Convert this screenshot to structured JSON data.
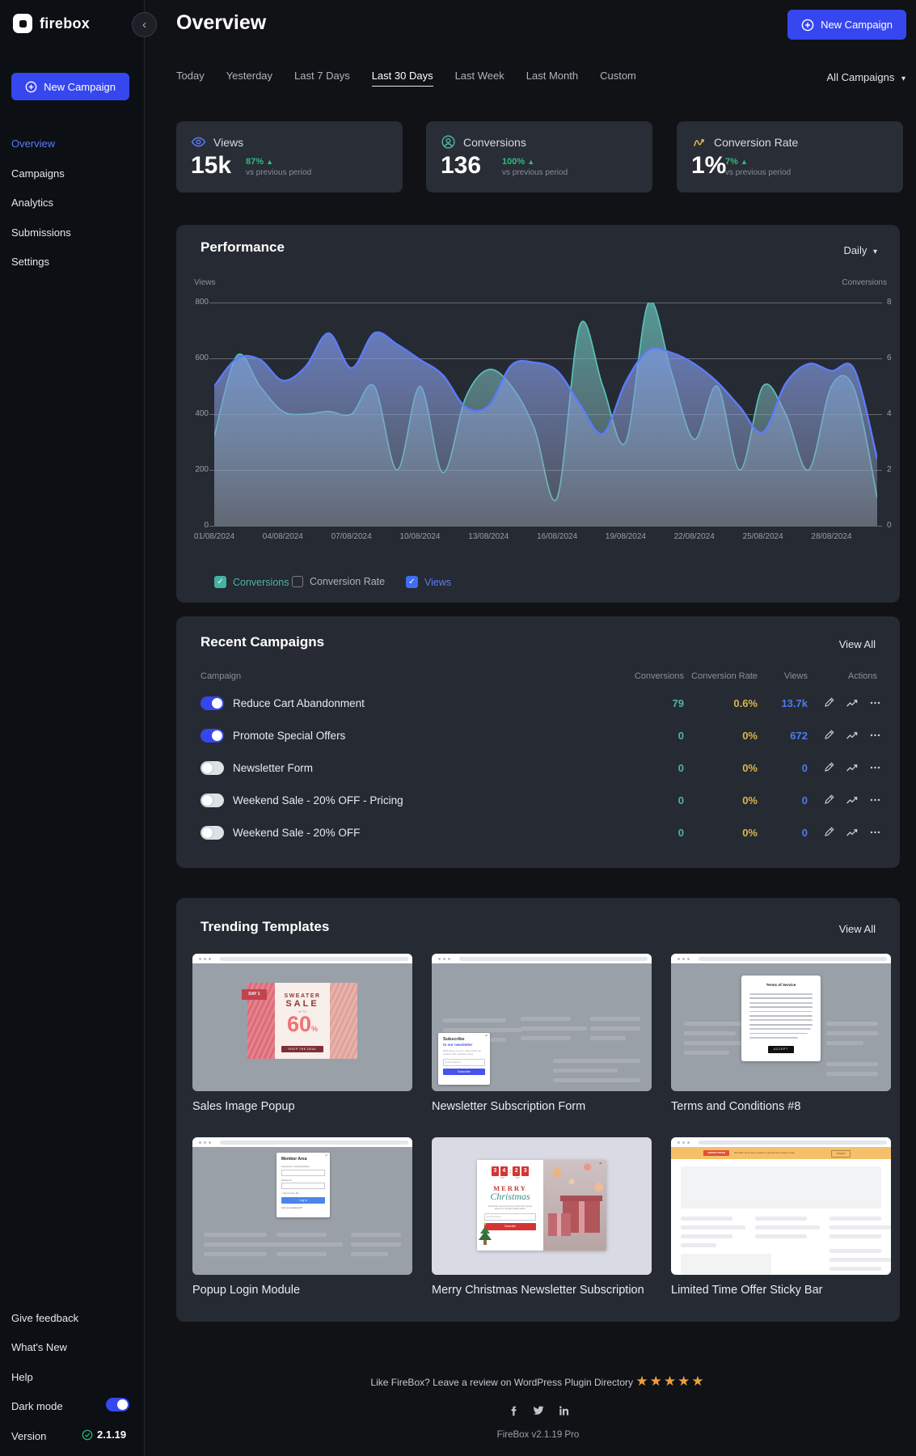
{
  "sidebar": {
    "brand": "firebox",
    "new_campaign_label": "New Campaign",
    "nav": [
      {
        "label": "Overview",
        "active": true
      },
      {
        "label": "Campaigns",
        "active": false
      },
      {
        "label": "Analytics",
        "active": false
      },
      {
        "label": "Submissions",
        "active": false
      },
      {
        "label": "Settings",
        "active": false
      }
    ],
    "footer_links": [
      "Give feedback",
      "What's New",
      "Help"
    ],
    "dark_mode_label": "Dark mode",
    "dark_mode_on": true,
    "version_label": "Version",
    "version_value": "2.1.19"
  },
  "header": {
    "title": "Overview",
    "new_campaign_label": "New Campaign",
    "campaign_filter": "All Campaigns"
  },
  "date_filters": {
    "items": [
      "Today",
      "Yesterday",
      "Last 7 Days",
      "Last 30 Days",
      "Last Week",
      "Last Month",
      "Custom"
    ],
    "active": "Last 30 Days"
  },
  "stats": [
    {
      "label": "Views",
      "value": "15k",
      "delta": "87%",
      "up": "▲",
      "note": "vs previous period",
      "accent": "#5b7cfa"
    },
    {
      "label": "Conversions",
      "value": "136",
      "delta": "100%",
      "up": "▲",
      "note": "vs previous period",
      "accent": "#4fb3a9"
    },
    {
      "label": "Conversion Rate",
      "value": "1%",
      "delta": "7%",
      "up": "▲",
      "note": "vs previous period",
      "accent": "#e3bb4e"
    }
  ],
  "performance": {
    "title": "Performance",
    "range_label": "Daily",
    "legend": [
      {
        "label": "Conversions",
        "checked": true,
        "color": "#4fb3a9"
      },
      {
        "label": "Conversion Rate",
        "checked": false,
        "color": "#aeb4bc"
      },
      {
        "label": "Views",
        "checked": true,
        "color": "#5b7cfa"
      }
    ]
  },
  "chart_data": {
    "type": "area",
    "title": "Performance",
    "x": [
      "01/08/2024",
      "02/08/2024",
      "03/08/2024",
      "04/08/2024",
      "05/08/2024",
      "06/08/2024",
      "07/08/2024",
      "08/08/2024",
      "09/08/2024",
      "10/08/2024",
      "11/08/2024",
      "12/08/2024",
      "13/08/2024",
      "14/08/2024",
      "15/08/2024",
      "16/08/2024",
      "17/08/2024",
      "18/08/2024",
      "19/08/2024",
      "20/08/2024",
      "21/08/2024",
      "22/08/2024",
      "23/08/2024",
      "24/08/2024",
      "25/08/2024",
      "26/08/2024",
      "27/08/2024",
      "28/08/2024",
      "29/08/2024",
      "30/08/2024"
    ],
    "x_tick_every": 3,
    "left_axis": {
      "label": "Views",
      "min": 0,
      "max": 800,
      "ticks": [
        800,
        600,
        400,
        200,
        0
      ]
    },
    "right_axis": {
      "label": "Conversions",
      "min": 0,
      "max": 8,
      "ticks": [
        8,
        6,
        4,
        2,
        0
      ]
    },
    "grid": true,
    "legend_position": "bottom",
    "series": [
      {
        "name": "Conversions",
        "axis": "right",
        "color": "#58c2b9",
        "values": [
          3.2,
          6.1,
          5.0,
          4.1,
          4.0,
          4.1,
          4.0,
          5.0,
          2.0,
          5.0,
          1.9,
          4.6,
          5.6,
          5.0,
          3.5,
          1.0,
          7.2,
          5.0,
          3.0,
          8.0,
          5.5,
          3.1,
          5.0,
          2.0,
          5.0,
          4.0,
          2.0,
          5.0,
          4.9,
          1.0
        ]
      },
      {
        "name": "Views",
        "axis": "left",
        "color": "#5b7cfa",
        "values": [
          500,
          600,
          595,
          520,
          570,
          690,
          565,
          690,
          650,
          595,
          540,
          425,
          430,
          575,
          585,
          555,
          435,
          330,
          515,
          630,
          620,
          580,
          515,
          425,
          335,
          510,
          580,
          555,
          560,
          240
        ]
      }
    ]
  },
  "recent_campaigns": {
    "title": "Recent Campaigns",
    "view_all": "View All",
    "columns": {
      "campaign": "Campaign",
      "conversions": "Conversions",
      "rate": "Conversion Rate",
      "views": "Views",
      "actions": "Actions"
    },
    "rows": [
      {
        "name": "Reduce Cart Abandonment",
        "enabled": true,
        "conversions": "79",
        "rate": "0.6%",
        "views": "13.7k"
      },
      {
        "name": "Promote Special Offers",
        "enabled": true,
        "conversions": "0",
        "rate": "0%",
        "views": "672"
      },
      {
        "name": "Newsletter Form",
        "enabled": false,
        "conversions": "0",
        "rate": "0%",
        "views": "0"
      },
      {
        "name": "Weekend Sale - 20% OFF - Pricing",
        "enabled": false,
        "conversions": "0",
        "rate": "0%",
        "views": "0"
      },
      {
        "name": "Weekend Sale - 20% OFF",
        "enabled": false,
        "conversions": "0",
        "rate": "0%",
        "views": "0"
      }
    ]
  },
  "templates": {
    "title": "Trending Templates",
    "view_all": "View All",
    "items": [
      {
        "name": "Sales Image Popup"
      },
      {
        "name": "Newsletter Subscription Form"
      },
      {
        "name": "Terms and Conditions #8"
      },
      {
        "name": "Popup Login Module"
      },
      {
        "name": "Merry Christmas Newsletter Subscription"
      },
      {
        "name": "Limited Time Offer Sticky Bar"
      }
    ],
    "art": {
      "sale": {
        "ribbon": "DAY 1",
        "line1": "SWEATER",
        "line2": "SALE",
        "upto": "UP TO",
        "pct": "60",
        "pctsign": "%",
        "off": "OFF",
        "btn": "SHOP THE DEAL"
      },
      "newsletter": {
        "title": "Subscribe",
        "sub": "to our newsletter",
        "body1": "We'll keep you up to date about our",
        "body2": "product with exclusive news",
        "placeholder": "Email address",
        "btn": "Subscribe",
        "close": "×"
      },
      "terms": {
        "title": "Terms of Service",
        "btn": "ACCEPT"
      },
      "login": {
        "title": "Member Area",
        "user_label": "Username or Email Address",
        "pass_label": "Password",
        "remember": "Remember Me",
        "btn": "Log In",
        "lost": "Lost your password?",
        "close": "×"
      },
      "xmas": {
        "d1": "3",
        "d2": "4",
        "d3": "2",
        "d4": "3",
        "min": "MIN",
        "sec": "SEC",
        "merry": "MERRY",
        "christmas": "Christmas",
        "body1": "Subscribe now and be one of the first to know",
        "body2": "about our special holiday deals!",
        "placeholder": "Email address",
        "btn": "Subscribe",
        "close": "×"
      },
      "sticky": {
        "badge": "LIMITED OFFER",
        "text": "Get 20% off on any product or use the free coupon code",
        "code": "SAVE20"
      }
    }
  },
  "footer": {
    "review_text": "Like FireBox? Leave a review on WordPress Plugin Directory",
    "stars": "★★★★★",
    "version_text": "FireBox v2.1.19 Pro"
  }
}
